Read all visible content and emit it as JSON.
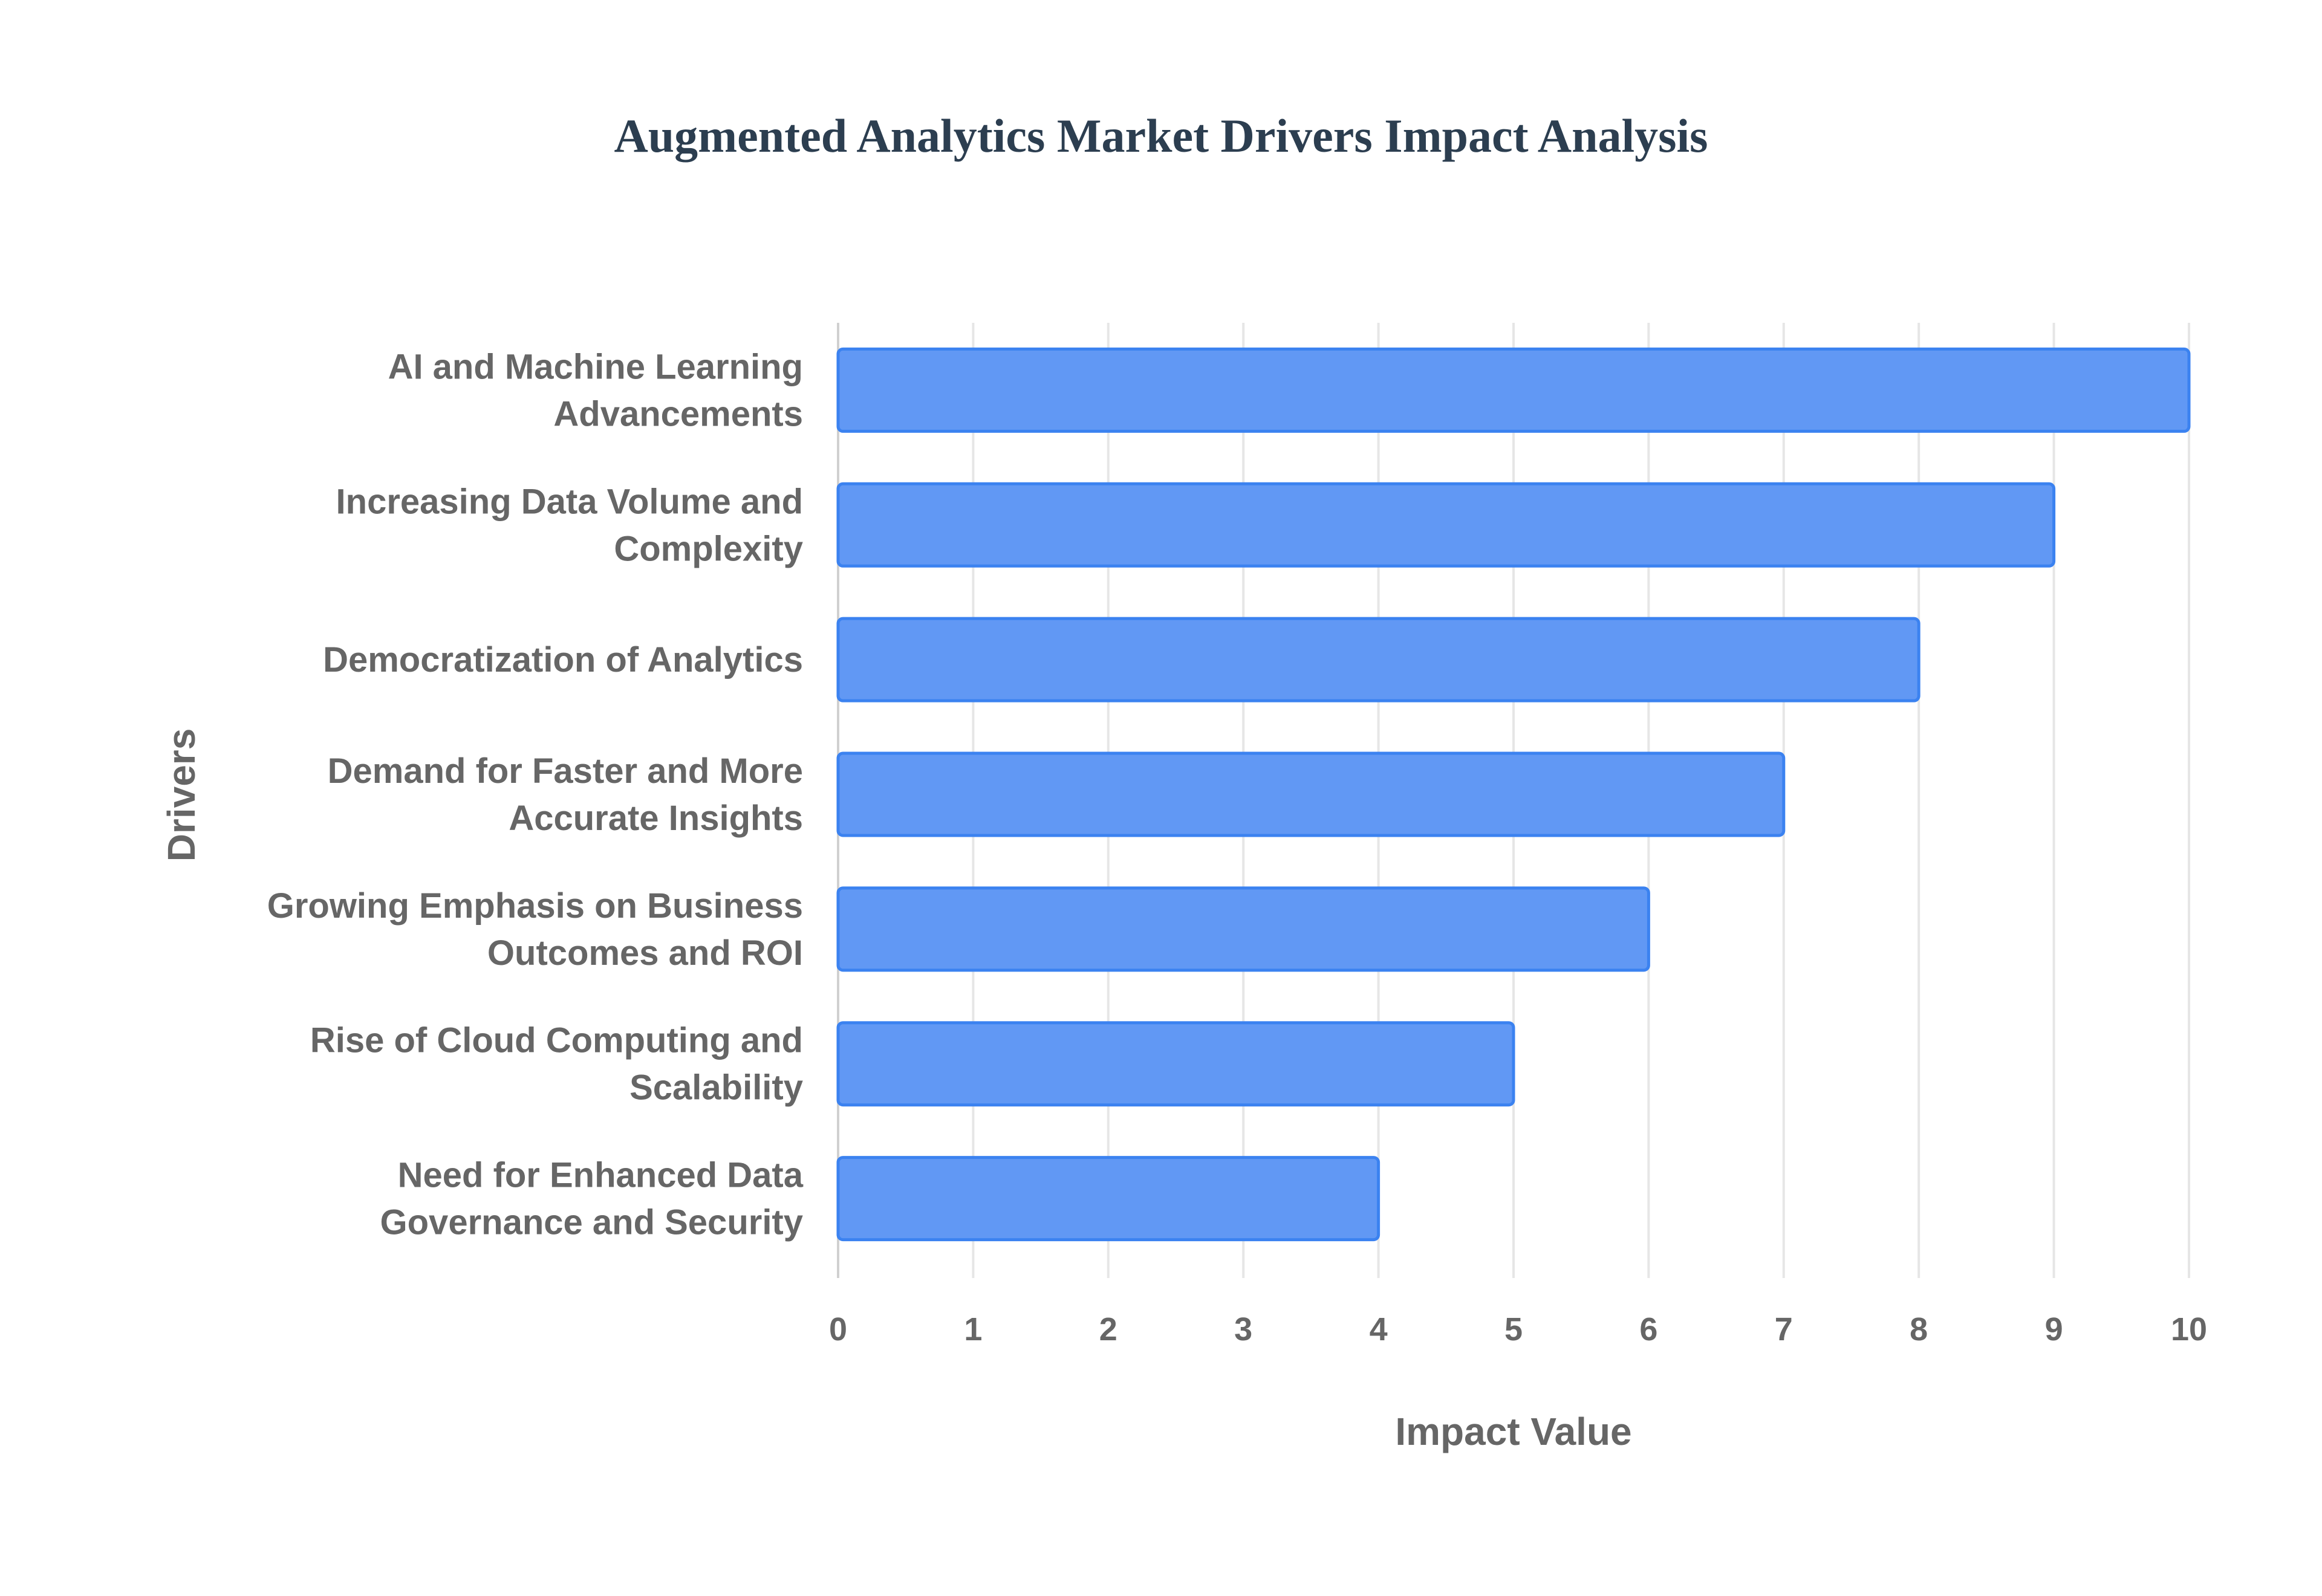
{
  "chart_data": {
    "type": "bar",
    "orientation": "horizontal",
    "title": "Augmented Analytics Market Drivers Impact Analysis",
    "xlabel": "Impact Value",
    "ylabel": "Drivers",
    "xlim": [
      0,
      10
    ],
    "xticks": [
      "0",
      "1",
      "2",
      "3",
      "4",
      "5",
      "6",
      "7",
      "8",
      "9",
      "10"
    ],
    "grid": true,
    "categories": [
      [
        "AI and Machine Learning",
        "Advancements"
      ],
      [
        "Increasing Data Volume and",
        "Complexity"
      ],
      [
        "Democratization of Analytics"
      ],
      [
        "Demand for Faster and More",
        "Accurate Insights"
      ],
      [
        "Growing Emphasis on Business",
        "Outcomes and ROI"
      ],
      [
        "Rise of Cloud Computing and",
        "Scalability"
      ],
      [
        "Need for Enhanced Data",
        "Governance and Security"
      ]
    ],
    "values": [
      10,
      9,
      8,
      7,
      6,
      5,
      4
    ],
    "colors": {
      "bar_fill": "#6198f4",
      "bar_border": "#3b82f0",
      "grid": "#e6e6e6",
      "text": "#666666",
      "title": "#2c3e50"
    }
  }
}
